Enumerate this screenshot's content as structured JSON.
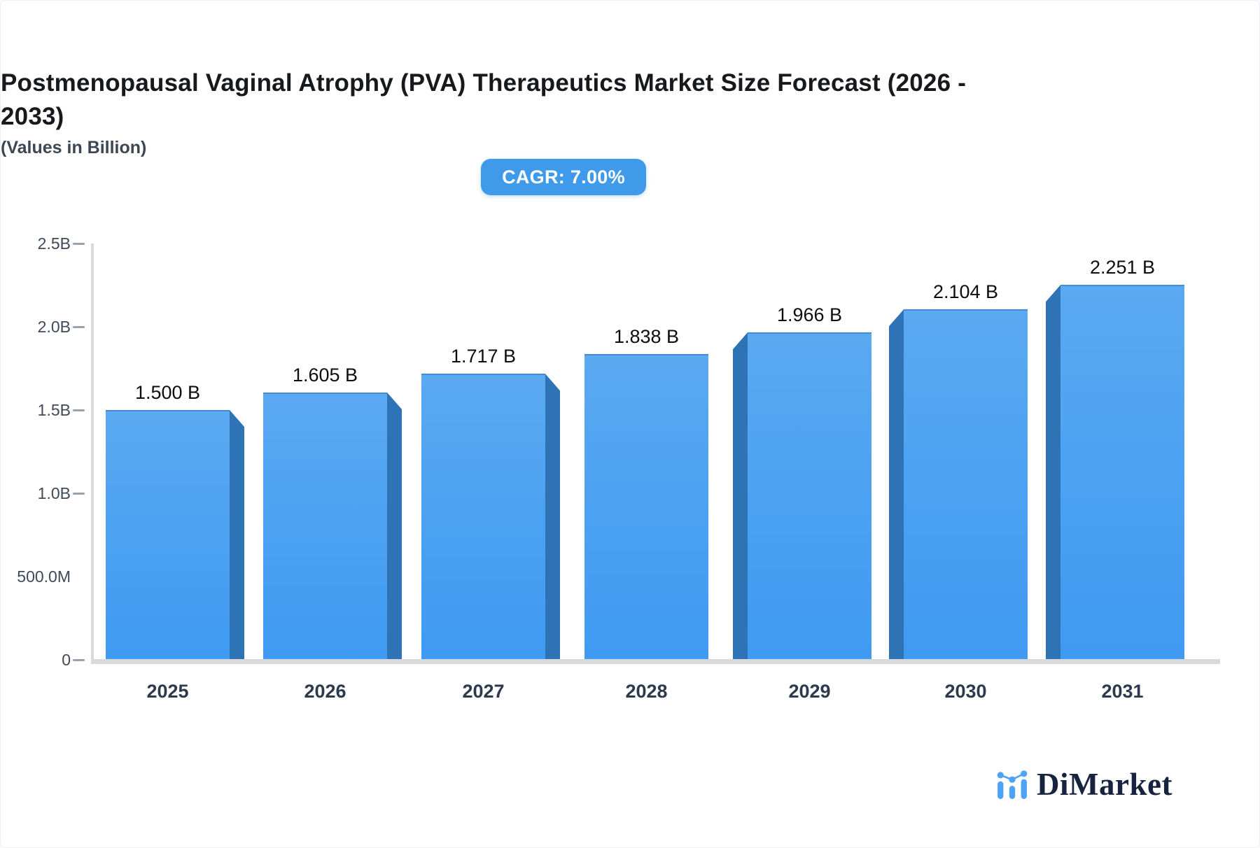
{
  "header": {
    "title_line1": "Postmenopausal Vaginal Atrophy (PVA) Therapeutics Market Size Forecast (2026 -",
    "title_line2": "2033)",
    "subtitle": "(Values in Billion)",
    "cagr_badge_label": "CAGR: 7.00%"
  },
  "chart_data": {
    "type": "bar",
    "title": "Postmenopausal Vaginal Atrophy (PVA) Therapeutics Market Size Forecast (2026 - 2033)",
    "subtitle": "(Values in Billion)",
    "cagr": "7.00%",
    "categories": [
      "2025",
      "2026",
      "2027",
      "2028",
      "2029",
      "2030",
      "2031"
    ],
    "values": [
      1.5,
      1.605,
      1.717,
      1.838,
      1.966,
      2.104,
      2.251
    ],
    "value_labels": [
      "1.500 B",
      "1.605 B",
      "1.717 B",
      "1.838 B",
      "1.966 B",
      "2.104 B",
      "2.251 B"
    ],
    "xlabel": "",
    "ylabel": "",
    "ylim": [
      0,
      2.5
    ],
    "grid": false,
    "legend": null,
    "y_ticks": [
      {
        "label": "2.5B",
        "value": 2.5,
        "dash": true
      },
      {
        "label": "2.0B",
        "value": 2.0,
        "dash": true
      },
      {
        "label": "1.5B",
        "value": 1.5,
        "dash": true
      },
      {
        "label": "1.0B",
        "value": 1.0,
        "dash": true
      },
      {
        "label": "500.0M",
        "value": 0.5,
        "dash": false
      },
      {
        "label": "0",
        "value": 0.0,
        "dash": true
      }
    ]
  },
  "branding": {
    "logo_text": "DiMarket",
    "logo_icon": "bar-chart-trend-icon"
  },
  "colors": {
    "badge_bg": "#3f9bea",
    "bar_face_top": "#5aa9f1",
    "bar_face_bottom": "#3f9af2",
    "bar_top_edge": "#468cd1",
    "bar_side": "#2e73b6",
    "axis": "#d6dade",
    "tick_dash": "#9aa1ab",
    "title_text": "#17191d",
    "subtitle_text": "#3d4754",
    "y_label_text": "#3f4a59",
    "x_label_text": "#2d3a4e",
    "value_label_text": "#0c0d0f",
    "logo_blue": "#4fa3f6",
    "logo_navy": "#17233f"
  }
}
